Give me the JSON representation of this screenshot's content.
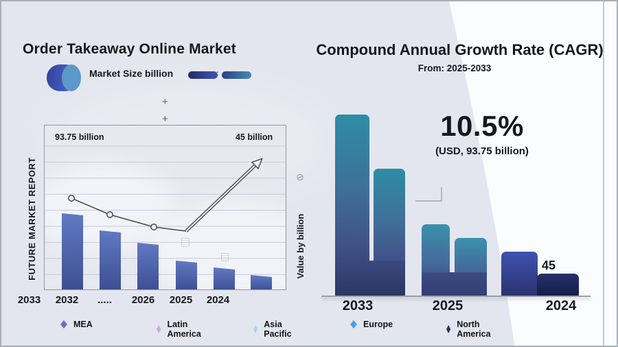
{
  "header": {
    "title": "Order Takeaway Online Market",
    "market_size_label": "Market Size billion",
    "ratio_separator": ":"
  },
  "right_header": {
    "title": "Compound Annual Growth Rate (CAGR)",
    "subtitle": "From: 2025-2033"
  },
  "decorations": {
    "plus_mark": "+",
    "circle_icon": "⊖"
  },
  "chart_data": [
    {
      "type": "bar",
      "title": "Order Takeaway Online Market",
      "ylabel": "FUTURE MARKET REPORT",
      "annotations": {
        "start_value": "93.75 billion",
        "end_value": "45 billion"
      },
      "categories": [
        "2033",
        "2032",
        ".....",
        "2026",
        "2025",
        "2024"
      ],
      "bar_heights_rel": [
        113,
        88,
        70,
        44,
        34,
        23
      ],
      "line_points_rel": [
        [
          39,
          106
        ],
        [
          95,
          130
        ],
        [
          159,
          148
        ],
        [
          206,
          154
        ]
      ],
      "trend_arrow_to": [
        313,
        52
      ],
      "grid": true,
      "legend_position": "bottom"
    },
    {
      "type": "bar",
      "subtype": "grouped",
      "ylabel": "Value by billion",
      "cagr_value": "10.5%",
      "cagr_note": "(USD, 93.75 billion)",
      "categories": [
        "2033",
        "2025",
        "2024"
      ],
      "series_heights_rel": [
        [
          265,
          186
        ],
        [
          105,
          85
        ],
        [
          65,
          33
        ]
      ],
      "value_label": {
        "group": "2024",
        "text": "45"
      }
    }
  ],
  "legend": {
    "items": [
      {
        "label": "MEA",
        "color": "#7a64c6"
      },
      {
        "label": "Latin America",
        "color": "#cfa9dd"
      },
      {
        "label": "Asia Pacific",
        "color": "#a6d6ec"
      },
      {
        "label": "Europe",
        "color": "#4aa0e4"
      },
      {
        "label": "North America",
        "color": "#27315f"
      }
    ]
  },
  "colors": {
    "background": "#e3e6ee",
    "swoosh": "#fbfcfe",
    "left_bar_top": "#5f7ac2",
    "left_bar_bottom": "#3e4d93",
    "line": "#45474d",
    "teal_bar_top": "#2e8da6",
    "navy_bar_bottom": "#141d49"
  }
}
